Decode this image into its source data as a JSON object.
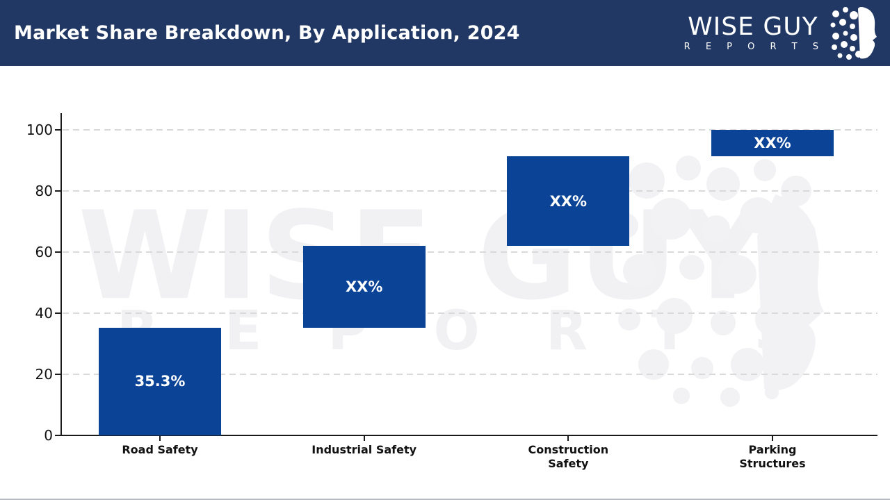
{
  "header": {
    "title": "Market Share Breakdown, By Application, 2024",
    "background_color": "#213864",
    "logo": {
      "main": "WISE GUY",
      "sub": "R E P O R T S"
    }
  },
  "watermark": {
    "main": "WISE GUY",
    "sub": "REPORTS",
    "color": "#f1f1f3"
  },
  "chart_data": {
    "type": "bar",
    "subtype": "floating-waterfall",
    "title": "Market Share Breakdown, By Application, 2024",
    "categories": [
      "Road Safety",
      "Industrial Safety",
      "Construction\nSafety",
      "Parking Structures"
    ],
    "series": [
      {
        "name": "Market Share",
        "segments": [
          {
            "category": "Road Safety",
            "from": 0,
            "to": 35.3,
            "label": "35.3%"
          },
          {
            "category": "Industrial Safety",
            "from": 35.3,
            "to": 62,
            "label": "XX%"
          },
          {
            "category": "Construction Safety",
            "from": 62,
            "to": 91.3,
            "label": "XX%"
          },
          {
            "category": "Parking Structures",
            "from": 91.3,
            "to": 100,
            "label": "XX%"
          }
        ]
      }
    ],
    "xlabel": "",
    "ylabel": "",
    "ylim": [
      0,
      100
    ],
    "yticks": [
      0,
      20,
      40,
      60,
      80,
      100
    ],
    "grid": "horizontal-dashed",
    "legend": "none",
    "bar_color": "#0b4397",
    "value_label_color": "#ffffff"
  }
}
